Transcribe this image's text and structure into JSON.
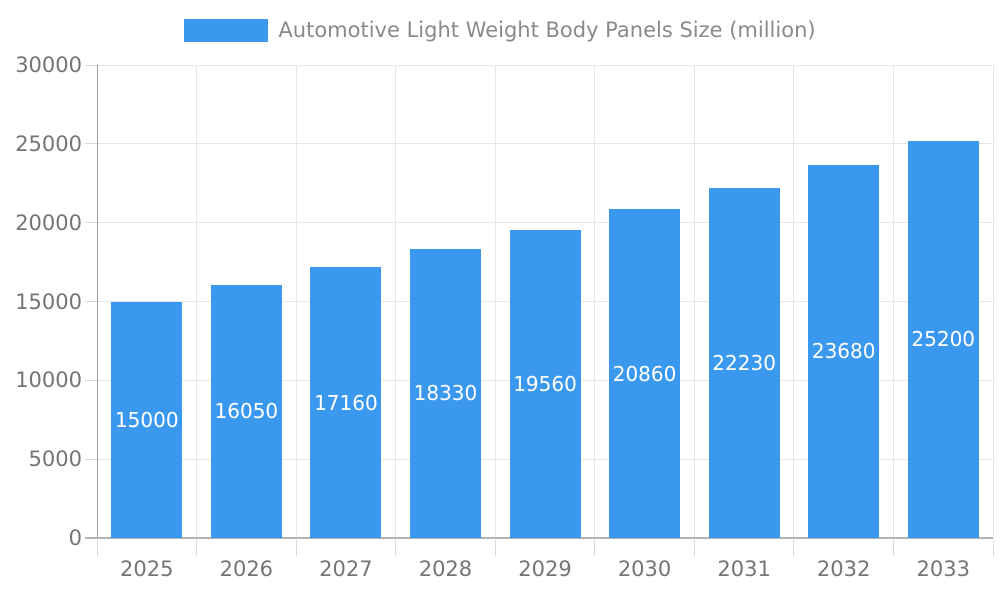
{
  "chart_data": {
    "type": "bar",
    "title": "Automotive Light Weight Body Panels Size (million)",
    "categories": [
      "2025",
      "2026",
      "2027",
      "2028",
      "2029",
      "2030",
      "2031",
      "2032",
      "2033"
    ],
    "values": [
      15000,
      16050,
      17160,
      18330,
      19560,
      20860,
      22230,
      23680,
      25200
    ],
    "value_labels": [
      "15000",
      "16050",
      "17160",
      "18330",
      "19560",
      "20860",
      "22230",
      "23680",
      "25200"
    ],
    "xlabel": "",
    "ylabel": "",
    "ylim": [
      0,
      30000
    ],
    "ytick_step": 5000,
    "ytick_labels": [
      "0",
      "5000",
      "10000",
      "15000",
      "20000",
      "25000",
      "30000"
    ],
    "grid": true,
    "legend_position": "top",
    "colors": {
      "bar": "#3a99ee",
      "bar_label_text": "#ffffff",
      "legend_text": "#8a8a8a",
      "axis_label_text": "#757575",
      "grid_line": "#e6e6e6",
      "tick_line": "#d9d9d9",
      "y_axis_line": "#9e9e9e",
      "x_axis_line": "#b3b3b3"
    }
  }
}
